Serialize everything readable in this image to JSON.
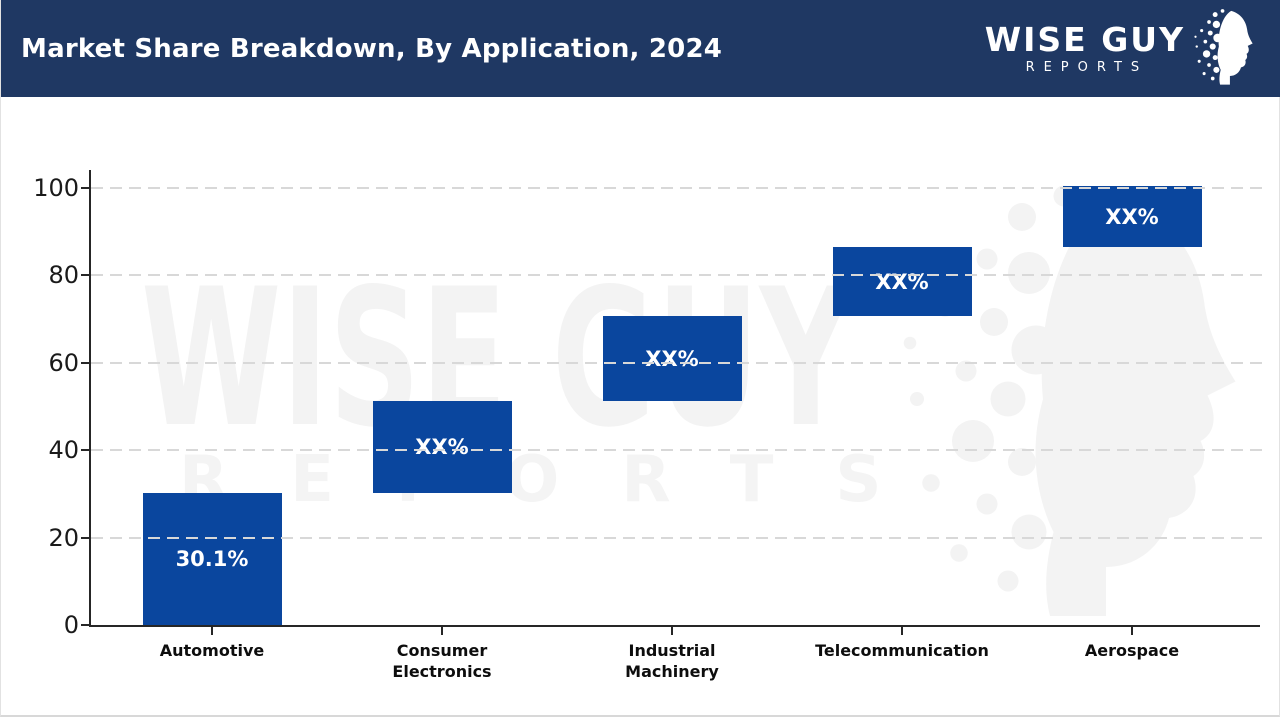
{
  "header": {
    "title": "Market Share Breakdown, By Application, 2024",
    "logo": {
      "line1": "WISE GUY",
      "line2": "REPORTS"
    }
  },
  "watermark": {
    "line1": "WISE GUY",
    "line2": "REPORTS"
  },
  "chart_data": {
    "type": "bar",
    "subtype": "waterfall",
    "title": "Market Share Breakdown, By Application, 2024",
    "categories": [
      "Automotive",
      "Consumer\nElectronics",
      "Industrial\nMachinery",
      "Telecommunication",
      "Aerospace"
    ],
    "segments": [
      {
        "category": "Automotive",
        "start": 0,
        "end": 30.1,
        "label": "30.1%"
      },
      {
        "category": "Consumer Electronics",
        "start": 30.1,
        "end": 51.2,
        "label": "XX%"
      },
      {
        "category": "Industrial Machinery",
        "start": 51.2,
        "end": 70.6,
        "label": "XX%"
      },
      {
        "category": "Telecommunication",
        "start": 70.6,
        "end": 86.4,
        "label": "XX%"
      },
      {
        "category": "Aerospace",
        "start": 86.4,
        "end": 100.3,
        "label": "XX%"
      }
    ],
    "y_ticks": [
      0,
      20,
      40,
      60,
      80,
      100
    ],
    "ylim": [
      0,
      104
    ],
    "xlabel": "",
    "ylabel": "",
    "grid": "horizontal-dashed",
    "legend": "none",
    "bar_color": "#0a469e",
    "bar_label_color": "#ffffff"
  },
  "colors": {
    "header_bg": "#1f3863",
    "bar": "#0a469e",
    "axis": "#262626",
    "grid": "#d8d8d8",
    "tick_label": "#1a1a1a",
    "watermark": "#f3f3f3",
    "background": "#ffffff"
  }
}
